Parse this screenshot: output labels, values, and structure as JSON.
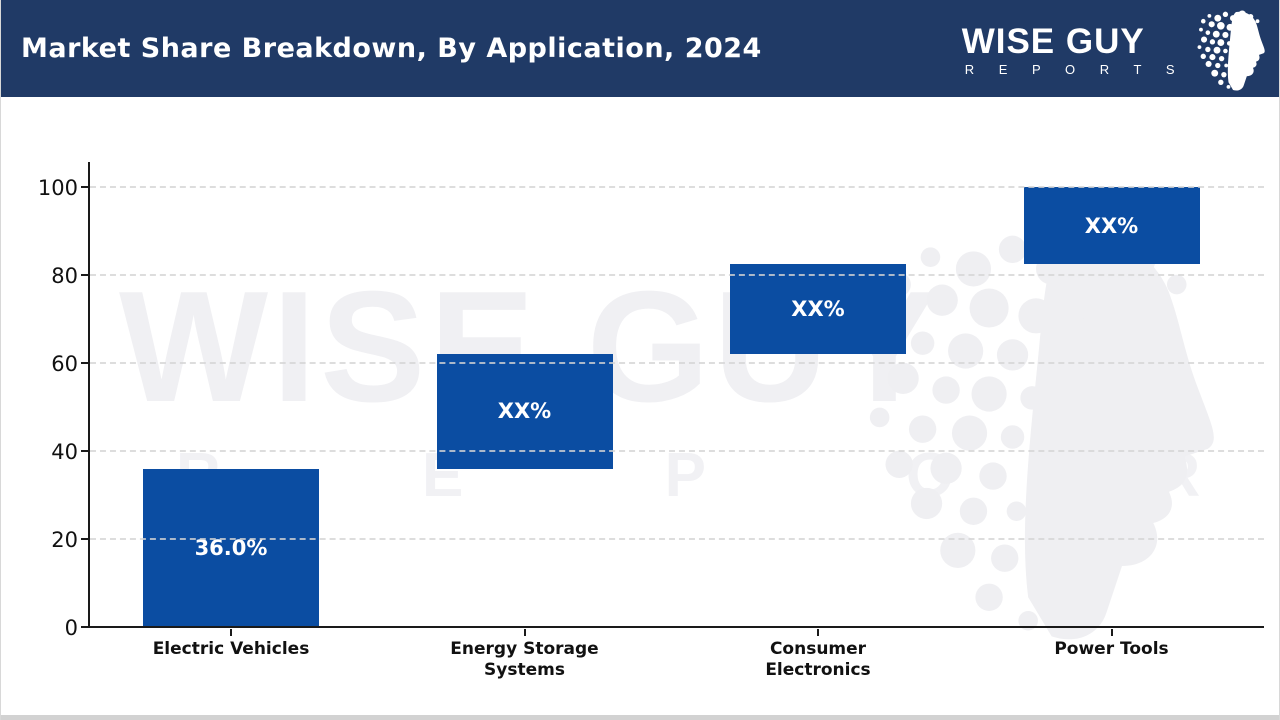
{
  "header": {
    "title": "Market Share Breakdown, By Application, 2024",
    "logo": {
      "line1": "WISE GUY",
      "line2": "R E P O R T S"
    }
  },
  "watermark": {
    "line1": "WISE GUY",
    "line2": "R E P O R T S"
  },
  "chart_data": {
    "type": "bar",
    "subtype": "stacked-waterfall",
    "title": "Market Share Breakdown, By Application, 2024",
    "categories": [
      "Electric Vehicles",
      "Energy Storage\nSystems",
      "Consumer\nElectronics",
      "Power Tools"
    ],
    "bars": [
      {
        "category": "Electric Vehicles",
        "start": 0,
        "end": 36,
        "label": "36.0%"
      },
      {
        "category": "Energy Storage Systems",
        "start": 36,
        "end": 62,
        "label": "XX%"
      },
      {
        "category": "Consumer Electronics",
        "start": 62,
        "end": 82.5,
        "label": "XX%"
      },
      {
        "category": "Power Tools",
        "start": 82.5,
        "end": 100,
        "label": "XX%"
      }
    ],
    "yticks": [
      0,
      20,
      40,
      60,
      80,
      100
    ],
    "ylim": [
      0,
      105
    ],
    "xlabel": "",
    "ylabel": "",
    "grid": true,
    "legend": false,
    "bar_color": "#0b4da2",
    "bar_label_color": "#ffffff"
  },
  "colors": {
    "header_bg": "#203a66",
    "bar": "#0b4da2",
    "watermark": "#f0f0f3",
    "axis": "#1a1a1a",
    "gridline": "#d5d5d5"
  }
}
